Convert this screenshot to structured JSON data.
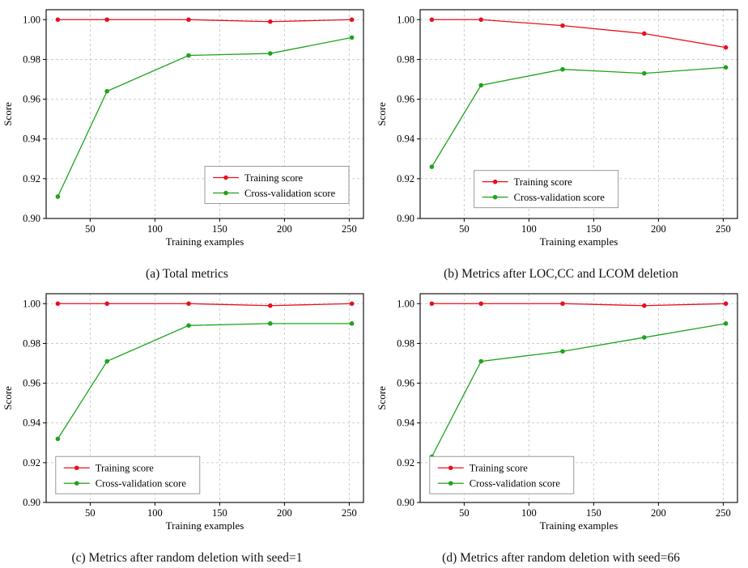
{
  "figure": {
    "legend_labels": [
      "Training score",
      "Cross-validation score"
    ],
    "colors": {
      "training": "#e8101f",
      "cross_validation": "#1ea31e",
      "grid": "#c8c8c8",
      "frame": "#000000"
    }
  },
  "chart_data": [
    {
      "type": "line",
      "caption": "(a) Total metrics",
      "xlabel": "Training examples",
      "ylabel": "Score",
      "x": [
        25,
        63,
        126,
        189,
        252
      ],
      "xlim": [
        16,
        261
      ],
      "ylim": [
        0.9,
        1.005
      ],
      "xticks": [
        50,
        100,
        150,
        200,
        250
      ],
      "yticks": [
        0.9,
        0.92,
        0.94,
        0.96,
        0.98,
        1.0
      ],
      "grid": true,
      "legend": {
        "x": 0.5,
        "y": 0.75
      },
      "series": [
        {
          "name": "Training score",
          "color": "#e8101f",
          "values": [
            1.0,
            1.0,
            1.0,
            0.999,
            1.0
          ]
        },
        {
          "name": "Cross-validation score",
          "color": "#1ea31e",
          "values": [
            0.911,
            0.964,
            0.982,
            0.983,
            0.991
          ]
        }
      ]
    },
    {
      "type": "line",
      "caption": "(b) Metrics after LOC,CC and LCOM deletion",
      "xlabel": "Training examples",
      "ylabel": "Score",
      "x": [
        25,
        63,
        126,
        189,
        252
      ],
      "xlim": [
        16,
        261
      ],
      "ylim": [
        0.9,
        1.005
      ],
      "xticks": [
        50,
        100,
        150,
        200,
        250
      ],
      "yticks": [
        0.9,
        0.92,
        0.94,
        0.96,
        0.98,
        1.0
      ],
      "grid": true,
      "legend": {
        "x": 0.17,
        "y": 0.77
      },
      "series": [
        {
          "name": "Training score",
          "color": "#e8101f",
          "values": [
            1.0,
            1.0,
            0.997,
            0.993,
            0.986
          ]
        },
        {
          "name": "Cross-validation score",
          "color": "#1ea31e",
          "values": [
            0.926,
            0.967,
            0.975,
            0.973,
            0.976
          ]
        }
      ]
    },
    {
      "type": "line",
      "caption": "(c) Metrics after random deletion with seed=1",
      "xlabel": "Training examples",
      "ylabel": "Score",
      "x": [
        25,
        63,
        126,
        189,
        252
      ],
      "xlim": [
        16,
        261
      ],
      "ylim": [
        0.9,
        1.005
      ],
      "xticks": [
        50,
        100,
        150,
        200,
        250
      ],
      "yticks": [
        0.9,
        0.92,
        0.94,
        0.96,
        0.98,
        1.0
      ],
      "grid": true,
      "legend": {
        "x": 0.03,
        "y": 0.78
      },
      "series": [
        {
          "name": "Training score",
          "color": "#e8101f",
          "values": [
            1.0,
            1.0,
            1.0,
            0.999,
            1.0
          ]
        },
        {
          "name": "Cross-validation score",
          "color": "#1ea31e",
          "values": [
            0.932,
            0.971,
            0.989,
            0.99,
            0.99
          ]
        }
      ]
    },
    {
      "type": "line",
      "caption": "(d) Metrics after random deletion with seed=66",
      "xlabel": "Training examples",
      "ylabel": "Score",
      "x": [
        25,
        63,
        126,
        189,
        252
      ],
      "xlim": [
        16,
        261
      ],
      "ylim": [
        0.9,
        1.005
      ],
      "xticks": [
        50,
        100,
        150,
        200,
        250
      ],
      "yticks": [
        0.9,
        0.92,
        0.94,
        0.96,
        0.98,
        1.0
      ],
      "grid": true,
      "legend": {
        "x": 0.03,
        "y": 0.78
      },
      "series": [
        {
          "name": "Training score",
          "color": "#e8101f",
          "values": [
            1.0,
            1.0,
            1.0,
            0.999,
            1.0
          ]
        },
        {
          "name": "Cross-validation score",
          "color": "#1ea31e",
          "values": [
            0.923,
            0.971,
            0.976,
            0.983,
            0.99
          ]
        }
      ]
    }
  ]
}
